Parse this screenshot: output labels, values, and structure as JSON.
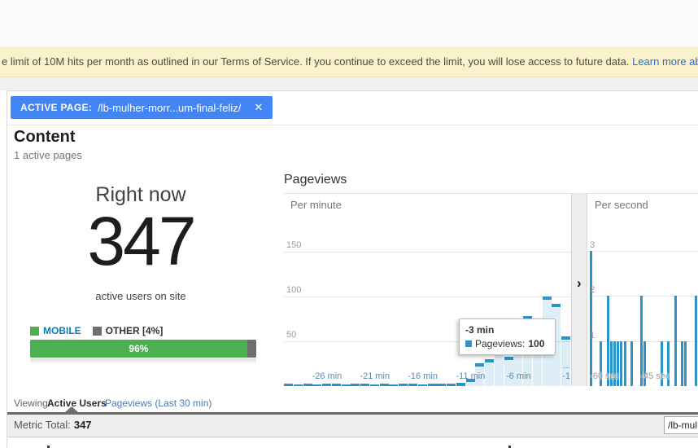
{
  "banner": {
    "message": "e limit of 10M hits per month as outlined in our Terms of Service. If you continue to exceed the limit, you will lose access to future data. ",
    "link_label": "Learn more ab"
  },
  "filter_chip": {
    "label": "ACTIVE PAGE:",
    "value": "/lb-mulher-morr...um-final-feliz/",
    "close_icon": "✕"
  },
  "content_header": {
    "title": "Content",
    "subtitle": "1 active pages"
  },
  "right_now": {
    "title": "Right now",
    "count": "347",
    "caption": "active users on site"
  },
  "devices": {
    "legend": [
      {
        "label": "MOBILE",
        "swatch_color": "#4caf50",
        "label_color": "#0d7ab8"
      },
      {
        "label": "OTHER [4%]",
        "swatch_color": "#6e6e6e",
        "label_color": "#333333"
      }
    ],
    "bar": {
      "value_label": "96%",
      "mobile_pct": 96,
      "other_pct": 4,
      "mobile_color": "#4caf50",
      "other_color": "#6e6e6e"
    }
  },
  "pageviews": {
    "title": "Pageviews",
    "divider_chevron": "›",
    "last_label_overflow": "...",
    "tooltip": {
      "title": "-3 min",
      "metric_label": "Pageviews:",
      "value": "100"
    }
  },
  "chart_data": [
    {
      "type": "bar",
      "title": "Per minute",
      "x": [
        -30,
        -29,
        -28,
        -27,
        -26,
        -25,
        -24,
        -23,
        -22,
        -21,
        -20,
        -19,
        -18,
        -17,
        -16,
        -15,
        -14,
        -13,
        -12,
        -11,
        -10,
        -9,
        -8,
        -7,
        -6,
        -5,
        -4,
        -3,
        -2,
        -1
      ],
      "values": [
        3,
        2,
        3,
        2,
        3,
        3,
        2,
        3,
        3,
        2,
        3,
        2,
        3,
        3,
        2,
        3,
        3,
        3,
        4,
        8,
        25,
        30,
        38,
        33,
        39,
        78,
        60,
        100,
        92,
        55
      ],
      "shown_tick_labels": [
        "-26 min",
        "-21 min",
        "-16 min",
        "-11 min",
        "-6 min",
        "-1"
      ],
      "gridlines": [
        50,
        100,
        150
      ],
      "ylim": [
        0,
        215
      ],
      "bar_color": "#2a93c9",
      "fill_color": "rgba(42,147,201,0.16)",
      "legend_position": "none"
    },
    {
      "type": "bar",
      "title": "Per second",
      "x": [
        -64,
        -63,
        -62,
        -61,
        -60,
        -59,
        -58,
        -57,
        -56,
        -55,
        -54,
        -53,
        -52,
        -51,
        -50,
        -49,
        -48,
        -47,
        -46,
        -45,
        -44,
        -43,
        -42,
        -41,
        -40,
        -39,
        -38,
        -37,
        -36,
        -35,
        -34,
        -33,
        -32,
        -31
      ],
      "values": [
        3,
        0,
        0,
        1,
        0,
        2,
        1,
        1,
        1,
        1,
        1,
        0,
        1,
        0,
        0,
        2,
        1,
        0,
        0,
        0,
        0,
        1,
        0,
        1,
        0,
        2,
        0,
        1,
        1,
        0,
        0,
        2,
        1,
        0
      ],
      "shown_tick_labels": [
        "-60 sec",
        "-45 sec"
      ],
      "gridlines": [
        1,
        2,
        3
      ],
      "ylim": [
        0,
        4.3
      ],
      "bar_color": "#2a93c9",
      "legend_position": "none"
    }
  ],
  "viewing": {
    "label": "Viewing:",
    "tabs": [
      {
        "label": "Active Users",
        "active": true
      },
      {
        "label": "Pageviews (Last 30 min)",
        "active": false
      }
    ]
  },
  "metric_total": {
    "label": "Metric Total:",
    "value": "347"
  },
  "page_filter_input": {
    "value": "/lb-mul"
  },
  "colors": {
    "accent_blue": "#4285f4",
    "chart_blue": "#2a93c9",
    "green": "#4caf50",
    "banner_bg": "#faf2cc",
    "metric_border": "#6b6b6b"
  }
}
